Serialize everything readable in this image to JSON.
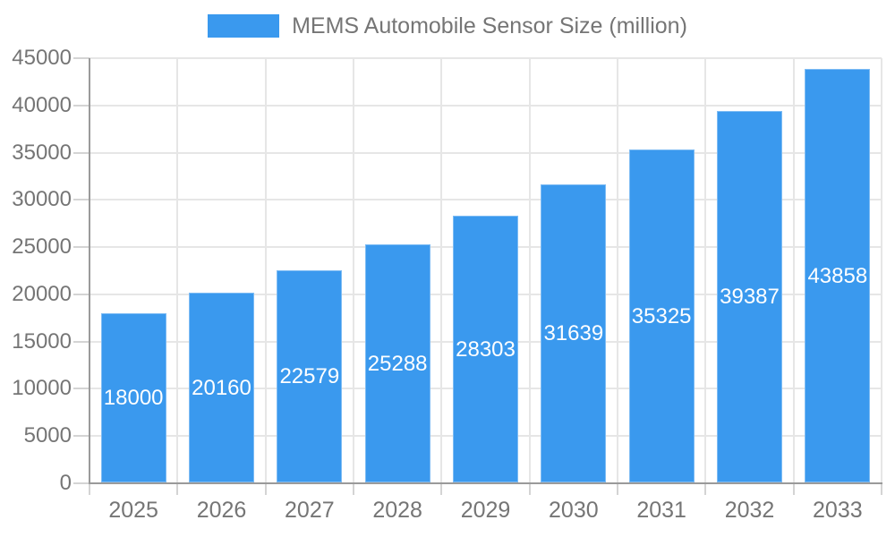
{
  "legend": {
    "label": "MEMS Automobile Sensor Size (million)"
  },
  "colors": {
    "bar": "#3a99ee",
    "grid": "#e6e6e6",
    "axis": "#9a9a9a",
    "tick": "#d4d4d4",
    "axis_text": "#757575",
    "value_label_text": "#ffffff",
    "background": "#ffffff"
  },
  "chart_data": {
    "type": "bar",
    "title": "MEMS Automobile Sensor Size (million)",
    "categories": [
      "2025",
      "2026",
      "2027",
      "2028",
      "2029",
      "2030",
      "2031",
      "2032",
      "2033"
    ],
    "values": [
      18000,
      20160,
      22579,
      25288,
      28303,
      31639,
      35325,
      39387,
      43858
    ],
    "xlabel": "",
    "ylabel": "",
    "ylim": [
      0,
      45000
    ],
    "ytick_step": 5000,
    "yticks": [
      0,
      5000,
      10000,
      15000,
      20000,
      25000,
      30000,
      35000,
      40000,
      45000
    ],
    "grid": true,
    "legend_position": "top-center",
    "value_labels": "inside-middle-white",
    "series": [
      {
        "name": "MEMS Automobile Sensor Size (million)",
        "values": [
          18000,
          20160,
          22579,
          25288,
          28303,
          31639,
          35325,
          39387,
          43858
        ]
      }
    ]
  }
}
